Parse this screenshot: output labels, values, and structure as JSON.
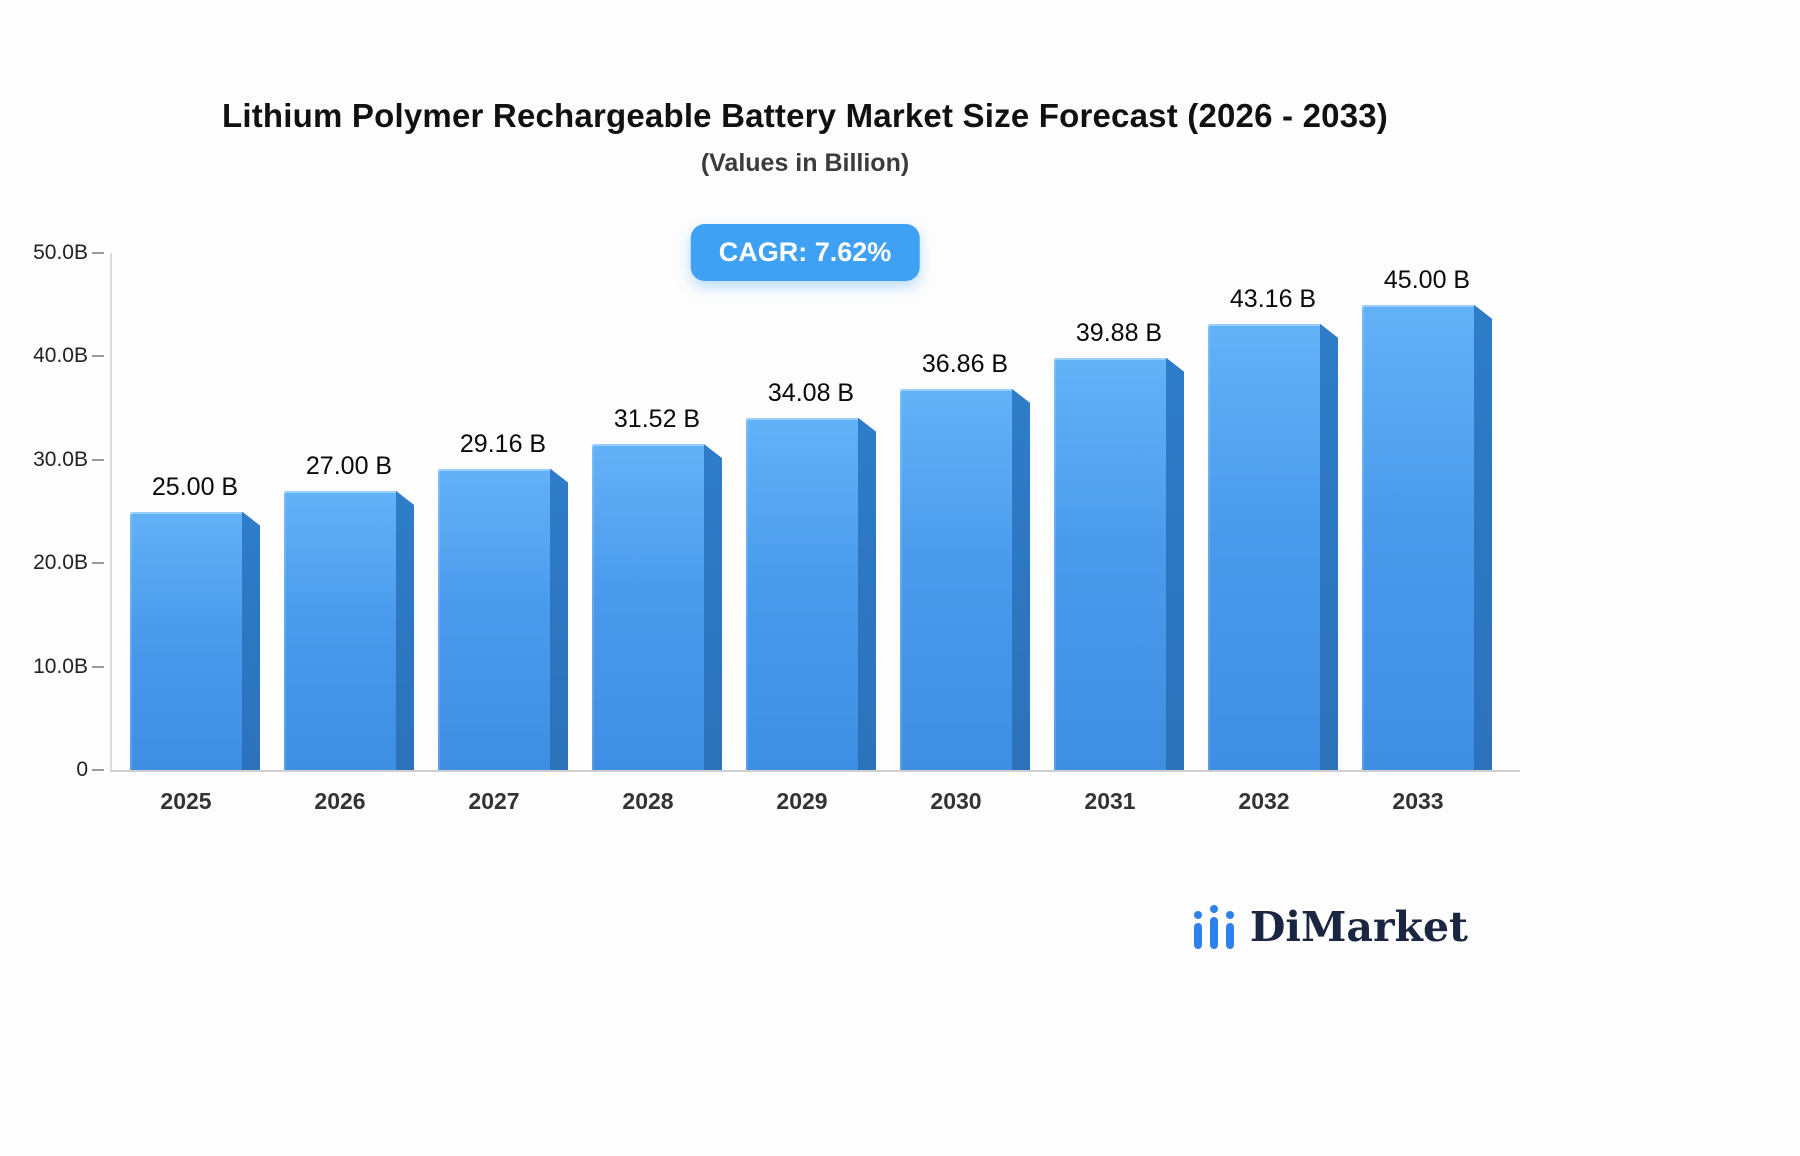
{
  "chart": {
    "title": "Lithium Polymer Rechargeable Battery Market Size Forecast (2026 - 2033)",
    "subtitle": "(Values in Billion)",
    "cagr_label": "CAGR: 7.62%"
  },
  "chart_data": {
    "type": "bar",
    "title": "Lithium Polymer Rechargeable Battery Market Size Forecast (2026 - 2033)",
    "subtitle": "(Values in Billion)",
    "annotation": "CAGR: 7.62%",
    "categories": [
      "2025",
      "2026",
      "2027",
      "2028",
      "2029",
      "2030",
      "2031",
      "2032",
      "2033"
    ],
    "values": [
      25.0,
      27.0,
      29.16,
      31.52,
      34.08,
      36.86,
      39.88,
      43.16,
      45.0
    ],
    "value_labels": [
      "25.00 B",
      "27.00 B",
      "29.16 B",
      "31.52 B",
      "34.08 B",
      "36.86 B",
      "39.88 B",
      "43.16 B",
      "45.00 B"
    ],
    "xlabel": "",
    "ylabel": "",
    "ylim": [
      0,
      50
    ],
    "yticks": [
      0,
      10,
      20,
      30,
      40,
      50
    ],
    "ytick_labels": [
      "0",
      "10.0B",
      "20.0B",
      "30.0B",
      "40.0B",
      "50.0B"
    ],
    "grid": false,
    "legend": false,
    "bar_face_color_top": "#63B2F7",
    "bar_face_color_bottom": "#3E8EE3",
    "bar_side_color": "#2E78C4",
    "badge_color": "#3FA1F3"
  },
  "brand": {
    "name": "DiMarket",
    "icon": "dimarket-bars-icon",
    "color": "#2F80ED"
  }
}
